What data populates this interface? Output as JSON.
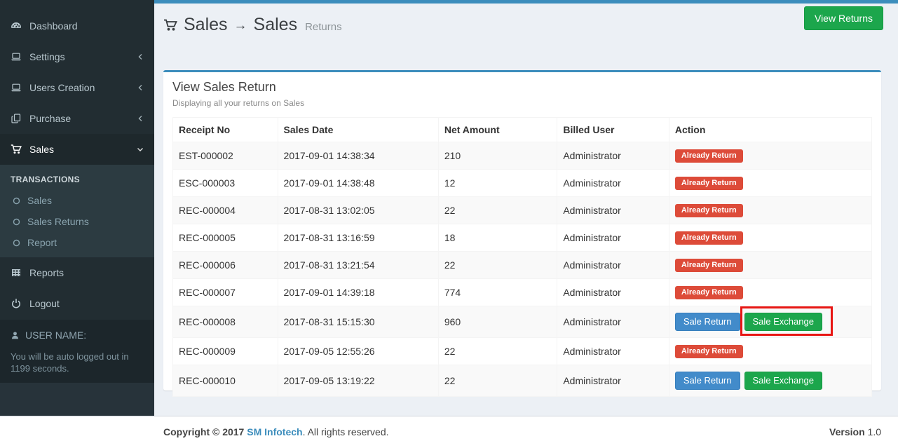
{
  "colors": {
    "accent": "#3c8dbc",
    "primary": "#428bca",
    "success": "#1ca64c",
    "danger": "#dd4b39",
    "annotation": "#e81613",
    "content_bg": "#ecf0f5"
  },
  "sidebar": {
    "items": [
      {
        "label": "Dashboard",
        "icon": "dashboard-icon"
      },
      {
        "label": "Settings",
        "icon": "laptop-icon",
        "chevron": "left"
      },
      {
        "label": "Users Creation",
        "icon": "laptop-icon",
        "chevron": "left"
      },
      {
        "label": "Purchase",
        "icon": "copy-icon",
        "chevron": "left"
      },
      {
        "label": "Sales",
        "icon": "cart-icon",
        "chevron": "down",
        "active": true
      }
    ],
    "submenu": {
      "header": "TRANSACTIONS",
      "items": [
        "Sales",
        "Sales Returns",
        "Report"
      ]
    },
    "items_after": [
      {
        "label": "Reports",
        "icon": "table-icon"
      },
      {
        "label": "Logout",
        "icon": "power-icon"
      }
    ],
    "user_panel": {
      "label": "USER NAME:",
      "note": "You will be auto logged out in 1199 seconds."
    }
  },
  "header": {
    "title_primary": "Sales",
    "arrow": "→",
    "title_secondary": "Sales",
    "title_sub": "Returns",
    "action_button": "View Returns"
  },
  "panel": {
    "title": "View Sales Return",
    "subtitle": "Displaying all your returns on Sales"
  },
  "table": {
    "columns": [
      "Receipt No",
      "Sales Date",
      "Net Amount",
      "Billed User",
      "Action"
    ],
    "rows": [
      {
        "receipt_no": "EST-000002",
        "sales_date": "2017-09-01 14:38:34",
        "net_amount": "210",
        "billed_user": "Administrator",
        "actions": [
          {
            "label": "Already Return",
            "type": "badge"
          }
        ]
      },
      {
        "receipt_no": "ESC-000003",
        "sales_date": "2017-09-01 14:38:48",
        "net_amount": "12",
        "billed_user": "Administrator",
        "actions": [
          {
            "label": "Already Return",
            "type": "badge"
          }
        ]
      },
      {
        "receipt_no": "REC-000004",
        "sales_date": "2017-08-31 13:02:05",
        "net_amount": "22",
        "billed_user": "Administrator",
        "actions": [
          {
            "label": "Already Return",
            "type": "badge"
          }
        ]
      },
      {
        "receipt_no": "REC-000005",
        "sales_date": "2017-08-31 13:16:59",
        "net_amount": "18",
        "billed_user": "Administrator",
        "actions": [
          {
            "label": "Already Return",
            "type": "badge"
          }
        ]
      },
      {
        "receipt_no": "REC-000006",
        "sales_date": "2017-08-31 13:21:54",
        "net_amount": "22",
        "billed_user": "Administrator",
        "actions": [
          {
            "label": "Already Return",
            "type": "badge"
          }
        ]
      },
      {
        "receipt_no": "REC-000007",
        "sales_date": "2017-09-01 14:39:18",
        "net_amount": "774",
        "billed_user": "Administrator",
        "actions": [
          {
            "label": "Already Return",
            "type": "badge"
          }
        ]
      },
      {
        "receipt_no": "REC-000008",
        "sales_date": "2017-08-31 15:15:30",
        "net_amount": "960",
        "billed_user": "Administrator",
        "actions": [
          {
            "label": "Sale Return",
            "type": "primary"
          },
          {
            "label": "Sale Exchange",
            "type": "success",
            "annotated": true
          }
        ]
      },
      {
        "receipt_no": "REC-000009",
        "sales_date": "2017-09-05 12:55:26",
        "net_amount": "22",
        "billed_user": "Administrator",
        "actions": [
          {
            "label": "Already Return",
            "type": "badge"
          }
        ]
      },
      {
        "receipt_no": "REC-000010",
        "sales_date": "2017-09-05 13:19:22",
        "net_amount": "22",
        "billed_user": "Administrator",
        "actions": [
          {
            "label": "Sale Return",
            "type": "primary"
          },
          {
            "label": "Sale Exchange",
            "type": "success"
          }
        ]
      }
    ]
  },
  "footer": {
    "copyright_prefix": "Copyright © 2017",
    "company": "SM Infotech",
    "copyright_suffix": ". All rights reserved.",
    "version_label": "Version",
    "version_value": "1.0"
  }
}
